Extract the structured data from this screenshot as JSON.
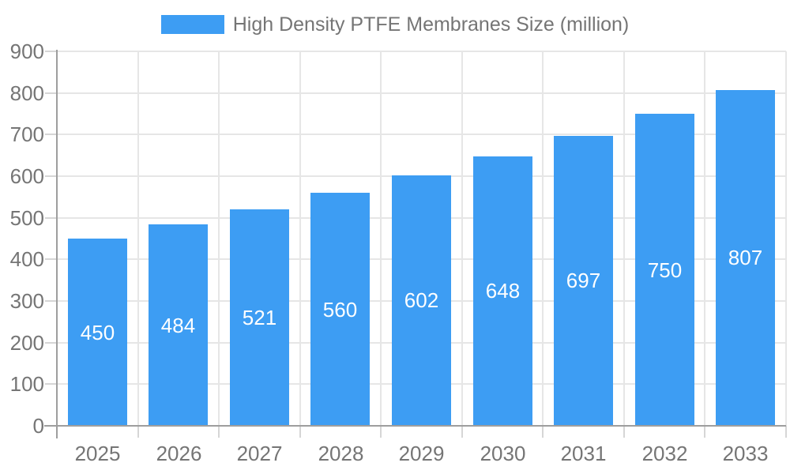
{
  "chart_data": {
    "type": "bar",
    "title": "High Density PTFE Membranes Size (million)",
    "legend": {
      "label": "High Density PTFE Membranes Size (million)",
      "position": "top"
    },
    "categories": [
      "2025",
      "2026",
      "2027",
      "2028",
      "2029",
      "2030",
      "2031",
      "2032",
      "2033"
    ],
    "series": [
      {
        "name": "High Density PTFE Membranes Size (million)",
        "values": [
          450,
          484,
          521,
          560,
          602,
          648,
          697,
          750,
          807
        ]
      }
    ],
    "value_labels_shown": true,
    "xlabel": "",
    "ylabel": "",
    "ylim": [
      0,
      900
    ],
    "yticks": [
      0,
      100,
      200,
      300,
      400,
      500,
      600,
      700,
      800,
      900
    ],
    "grid": true,
    "colors": {
      "bar": "#3d9df3",
      "value_label": "#ffffff",
      "axis_label": "#757575",
      "axis_line": "#9e9e9e",
      "gridline": "#e6e6e6",
      "tick": "#d6d6d6",
      "background": "#ffffff"
    }
  }
}
